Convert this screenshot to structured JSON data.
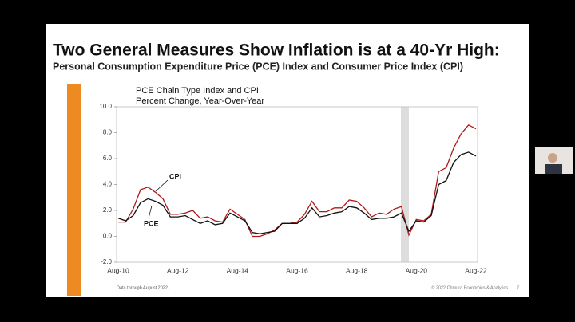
{
  "slide": {
    "title": "Two General Measures Show Inflation is at a 40-Yr High:",
    "subtitle": "Personal Consumption Expenditure Price (PCE) Index and Consumer Price Index (CPI)",
    "footnote": "Data through August 2022.",
    "copyright": "© 2022 Chmura Economics & Analytics",
    "page_number": "7"
  },
  "chart_data": {
    "type": "line",
    "title": [
      "PCE Chain Type Index and CPI",
      "Percent Change, Year-Over-Year"
    ],
    "annotations": [
      "CPI",
      "PCE"
    ],
    "categories": [
      "Aug-10",
      null,
      null,
      null,
      null,
      null,
      null,
      null,
      "Aug-12",
      null,
      null,
      null,
      null,
      null,
      null,
      null,
      "Aug-14",
      null,
      null,
      null,
      null,
      null,
      null,
      null,
      "Aug-16",
      null,
      null,
      null,
      null,
      null,
      null,
      null,
      "Aug-18",
      null,
      null,
      null,
      null,
      null,
      null,
      null,
      "Aug-20",
      null,
      null,
      null,
      null,
      null,
      null,
      null,
      "Aug-22"
    ],
    "series": [
      {
        "name": "CPI",
        "color": "#b01818",
        "values": [
          1.1,
          1.1,
          2.1,
          3.6,
          3.8,
          3.4,
          2.9,
          1.7,
          1.7,
          1.8,
          2.0,
          1.4,
          1.5,
          1.2,
          1.1,
          2.1,
          1.7,
          1.3,
          0.0,
          0.0,
          0.2,
          0.5,
          1.0,
          1.0,
          1.1,
          1.7,
          2.7,
          1.9,
          1.9,
          2.2,
          2.2,
          2.8,
          2.7,
          2.2,
          1.5,
          1.8,
          1.7,
          2.1,
          2.3,
          0.1,
          1.3,
          1.2,
          1.7,
          5.0,
          5.3,
          6.8,
          7.9,
          8.6,
          8.3
        ]
      },
      {
        "name": "PCE",
        "color": "#111111",
        "values": [
          1.4,
          1.2,
          1.6,
          2.6,
          2.9,
          2.7,
          2.4,
          1.5,
          1.5,
          1.6,
          1.3,
          1.0,
          1.2,
          0.9,
          1.0,
          1.8,
          1.5,
          1.2,
          0.3,
          0.2,
          0.3,
          0.4,
          1.0,
          1.0,
          1.0,
          1.4,
          2.2,
          1.5,
          1.6,
          1.8,
          1.9,
          2.3,
          2.2,
          1.8,
          1.3,
          1.4,
          1.4,
          1.5,
          1.8,
          0.4,
          1.2,
          1.1,
          1.6,
          4.0,
          4.3,
          5.7,
          6.3,
          6.5,
          6.2
        ]
      }
    ],
    "ylim": [
      -2,
      10
    ],
    "yticks": [
      {
        "value": -2,
        "label": "-2.0"
      },
      {
        "value": 0,
        "label": "0.0"
      },
      {
        "value": 2,
        "label": "2.0"
      },
      {
        "value": 4,
        "label": "4.0"
      },
      {
        "value": 6,
        "label": "6.0"
      },
      {
        "value": 8,
        "label": "8.0"
      },
      {
        "value": 10,
        "label": "10.0"
      }
    ]
  }
}
